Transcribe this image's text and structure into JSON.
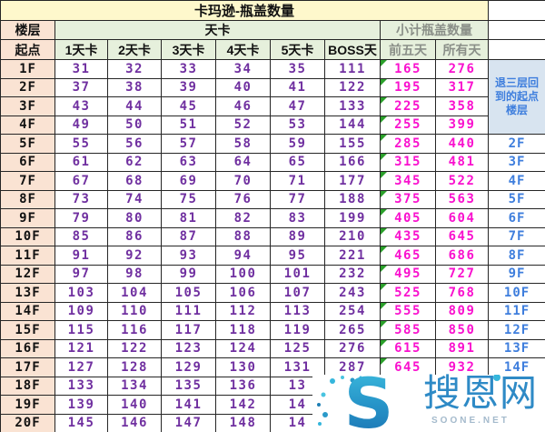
{
  "title": "卡玛逊-瓶盖数量",
  "header": {
    "floor_label_top": "楼层",
    "floor_label_bottom": "起点",
    "day_card_group": "天卡",
    "subtotal_group": "小计瓶盖数量",
    "day_columns": [
      "1天卡",
      "2天卡",
      "3天卡",
      "4天卡",
      "5天卡",
      "BOSS天"
    ],
    "subtotal_columns": [
      "前五天",
      "所有天"
    ],
    "return_note": "退三层回到的起点楼层"
  },
  "rows": [
    {
      "floor": "1F",
      "values": [
        "31",
        "32",
        "33",
        "34",
        "35",
        "111"
      ],
      "first_five": "165",
      "all_days": "276",
      "return_floor": ""
    },
    {
      "floor": "2F",
      "values": [
        "37",
        "38",
        "39",
        "40",
        "41",
        "122"
      ],
      "first_five": "195",
      "all_days": "317",
      "return_floor": ""
    },
    {
      "floor": "3F",
      "values": [
        "43",
        "44",
        "45",
        "46",
        "47",
        "133"
      ],
      "first_five": "225",
      "all_days": "358",
      "return_floor": ""
    },
    {
      "floor": "4F",
      "values": [
        "49",
        "50",
        "51",
        "52",
        "53",
        "144"
      ],
      "first_five": "255",
      "all_days": "399",
      "return_floor": ""
    },
    {
      "floor": "5F",
      "values": [
        "55",
        "56",
        "57",
        "58",
        "59",
        "155"
      ],
      "first_five": "285",
      "all_days": "440",
      "return_floor": "2F"
    },
    {
      "floor": "6F",
      "values": [
        "61",
        "62",
        "63",
        "64",
        "65",
        "166"
      ],
      "first_five": "315",
      "all_days": "481",
      "return_floor": "3F"
    },
    {
      "floor": "7F",
      "values": [
        "67",
        "68",
        "69",
        "70",
        "71",
        "177"
      ],
      "first_five": "345",
      "all_days": "522",
      "return_floor": "4F"
    },
    {
      "floor": "8F",
      "values": [
        "73",
        "74",
        "75",
        "76",
        "77",
        "188"
      ],
      "first_five": "375",
      "all_days": "563",
      "return_floor": "5F"
    },
    {
      "floor": "9F",
      "values": [
        "79",
        "80",
        "81",
        "82",
        "83",
        "199"
      ],
      "first_five": "405",
      "all_days": "604",
      "return_floor": "6F"
    },
    {
      "floor": "10F",
      "values": [
        "85",
        "86",
        "87",
        "88",
        "89",
        "210"
      ],
      "first_five": "435",
      "all_days": "645",
      "return_floor": "7F"
    },
    {
      "floor": "11F",
      "values": [
        "91",
        "92",
        "93",
        "94",
        "95",
        "221"
      ],
      "first_five": "465",
      "all_days": "686",
      "return_floor": "8F"
    },
    {
      "floor": "12F",
      "values": [
        "97",
        "98",
        "99",
        "100",
        "101",
        "232"
      ],
      "first_five": "495",
      "all_days": "727",
      "return_floor": "9F"
    },
    {
      "floor": "13F",
      "values": [
        "103",
        "104",
        "105",
        "106",
        "107",
        "243"
      ],
      "first_five": "525",
      "all_days": "768",
      "return_floor": "10F"
    },
    {
      "floor": "14F",
      "values": [
        "109",
        "110",
        "111",
        "112",
        "113",
        "254"
      ],
      "first_five": "555",
      "all_days": "809",
      "return_floor": "11F"
    },
    {
      "floor": "15F",
      "values": [
        "115",
        "116",
        "117",
        "118",
        "119",
        "265"
      ],
      "first_five": "585",
      "all_days": "850",
      "return_floor": "12F"
    },
    {
      "floor": "16F",
      "values": [
        "121",
        "122",
        "123",
        "124",
        "125",
        "276"
      ],
      "first_five": "615",
      "all_days": "891",
      "return_floor": "13F"
    },
    {
      "floor": "17F",
      "values": [
        "127",
        "128",
        "129",
        "130",
        "131",
        "287"
      ],
      "first_five": "645",
      "all_days": "932",
      "return_floor": "14F"
    },
    {
      "floor": "18F",
      "values": [
        "133",
        "134",
        "135",
        "136",
        "13",
        ""
      ],
      "first_five": "",
      "all_days": "",
      "return_floor": ""
    },
    {
      "floor": "19F",
      "values": [
        "139",
        "140",
        "141",
        "142",
        "14",
        ""
      ],
      "first_five": "",
      "all_days": "",
      "return_floor": ""
    },
    {
      "floor": "20F",
      "values": [
        "145",
        "146",
        "147",
        "148",
        "14",
        ""
      ],
      "first_five": "",
      "all_days": "",
      "return_floor": ""
    }
  ],
  "watermark": {
    "logo_letter": "S",
    "site_name": "搜恩网",
    "site_url": "SOONE.NET"
  },
  "colors": {
    "title_bg": "#FEF8CC",
    "floor_bg": "#FAE3D3",
    "header_bg": "#E6F0DC",
    "note_bg": "#D8E4F0",
    "day_value_text": "#7030A0",
    "subtotal_text": "#F911CE",
    "return_text": "#3E7EDD",
    "gray_header_text": "#8a8f88",
    "formula_flag": "#2BA02B",
    "watermark_blue": "#2E8AC6"
  }
}
